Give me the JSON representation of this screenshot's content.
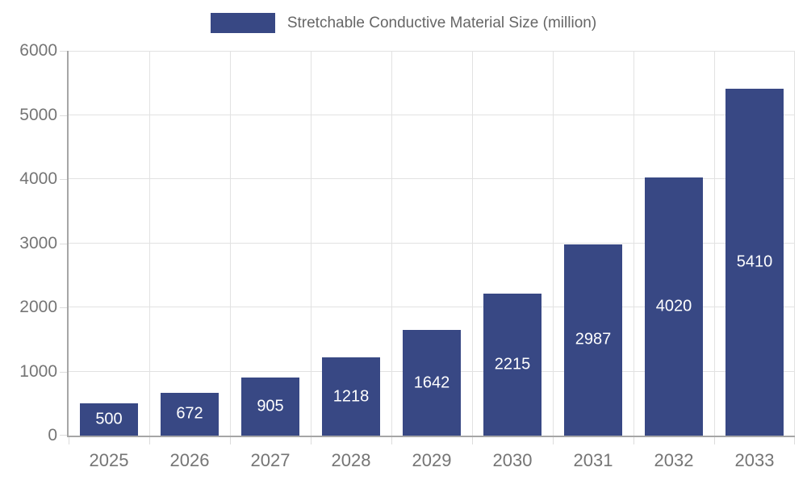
{
  "chart_data": {
    "type": "bar",
    "title": "Stretchable Conductive Material Size (million)",
    "legend": [
      "Stretchable Conductive Material Size (million)"
    ],
    "legend_position": "top-center",
    "categories": [
      "2025",
      "2026",
      "2027",
      "2028",
      "2029",
      "2030",
      "2031",
      "2032",
      "2033"
    ],
    "values": [
      500,
      672,
      905,
      1218,
      1642,
      2215,
      2987,
      4020,
      5410
    ],
    "value_labels_shown": true,
    "value_label_position": "inside-center",
    "xlabel": "",
    "ylabel": "",
    "ylim": [
      0,
      6000
    ],
    "yticks": [
      0,
      1000,
      2000,
      3000,
      4000,
      5000,
      6000
    ],
    "grid": true,
    "colors": {
      "bar": "#384884",
      "value_label": "#ffffff",
      "axis_text": "#757575",
      "legend_text": "#666666",
      "gridline": "#e2e2e2",
      "axis_line": "#a6a6a6",
      "background": "#ffffff"
    }
  }
}
